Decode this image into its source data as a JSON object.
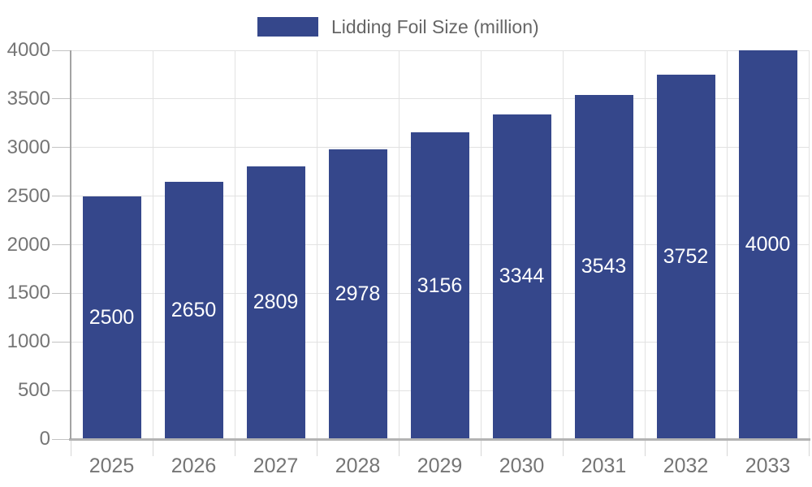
{
  "legend": {
    "label": "Lidding Foil Size (million)",
    "swatch_color": "#35478B"
  },
  "chart_data": {
    "type": "bar",
    "title": "",
    "xlabel": "",
    "ylabel": "",
    "series_name": "Lidding Foil Size (million)",
    "categories": [
      "2025",
      "2026",
      "2027",
      "2028",
      "2029",
      "2030",
      "2031",
      "2032",
      "2033"
    ],
    "values": [
      2500,
      2650,
      2809,
      2978,
      3156,
      3344,
      3543,
      3752,
      4000
    ],
    "ylim": [
      0,
      4000
    ],
    "yticks": [
      0,
      500,
      1000,
      1500,
      2000,
      2500,
      3000,
      3500,
      4000
    ],
    "grid": true,
    "legend_position": "top",
    "bar_color": "#35478B",
    "data_label_color": "#ffffff",
    "axis_label_color": "#757575",
    "gridline_color": "#e2e2e2"
  }
}
